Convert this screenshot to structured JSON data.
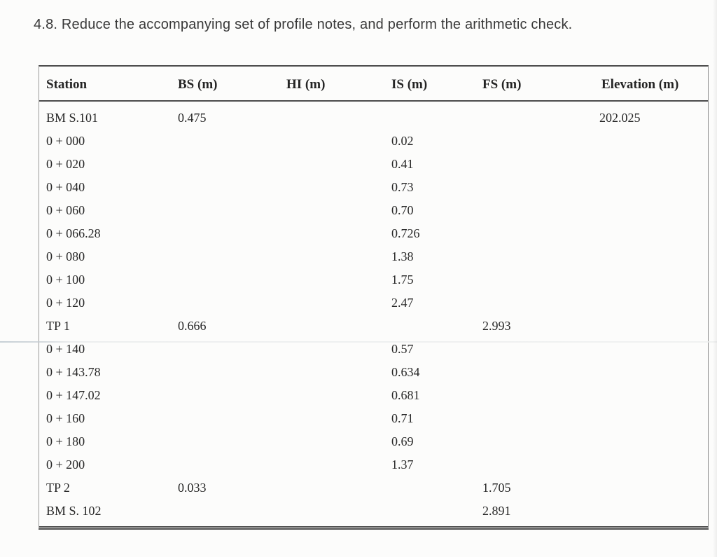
{
  "title": "4.8. Reduce the accompanying set of profile notes, and perform the arithmetic check.",
  "table": {
    "headers": [
      "Station",
      "BS (m)",
      "HI (m)",
      "IS (m)",
      "FS (m)",
      "Elevation (m)"
    ],
    "rows": [
      [
        "BM S.101",
        "0.475",
        "",
        "",
        "",
        "202.025"
      ],
      [
        "0 + 000",
        "",
        "",
        "0.02",
        "",
        ""
      ],
      [
        "0 + 020",
        "",
        "",
        "0.41",
        "",
        ""
      ],
      [
        "0 + 040",
        "",
        "",
        "0.73",
        "",
        ""
      ],
      [
        "0 + 060",
        "",
        "",
        "0.70",
        "",
        ""
      ],
      [
        "0 + 066.28",
        "",
        "",
        "0.726",
        "",
        ""
      ],
      [
        "0 + 080",
        "",
        "",
        "1.38",
        "",
        ""
      ],
      [
        "0 + 100",
        "",
        "",
        "1.75",
        "",
        ""
      ],
      [
        "0 + 120",
        "",
        "",
        "2.47",
        "",
        ""
      ],
      [
        "TP 1",
        "0.666",
        "",
        "",
        "2.993",
        ""
      ],
      [
        "0 + 140",
        "",
        "",
        "0.57",
        "",
        ""
      ],
      [
        "0 + 143.78",
        "",
        "",
        "0.634",
        "",
        ""
      ],
      [
        "0 + 147.02",
        "",
        "",
        "0.681",
        "",
        ""
      ],
      [
        "0 + 160",
        "",
        "",
        "0.71",
        "",
        ""
      ],
      [
        "0 + 180",
        "",
        "",
        "0.69",
        "",
        ""
      ],
      [
        "0 + 200",
        "",
        "",
        "1.37",
        "",
        ""
      ],
      [
        "TP 2",
        "0.033",
        "",
        "",
        "1.705",
        ""
      ],
      [
        "BM S. 102",
        "",
        "",
        "",
        "2.891",
        ""
      ]
    ]
  }
}
